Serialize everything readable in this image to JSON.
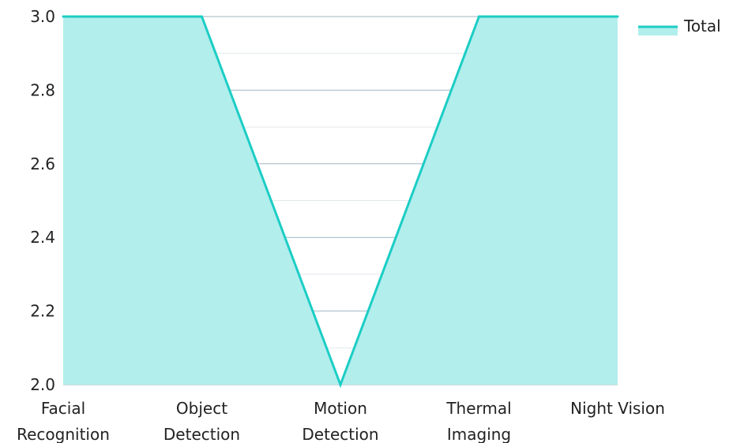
{
  "chart_data": {
    "type": "area",
    "categories": [
      [
        "Facial",
        "Recognition"
      ],
      [
        "Object",
        "Detection"
      ],
      [
        "Motion",
        "Detection"
      ],
      [
        "Thermal",
        "Imaging"
      ],
      [
        "Night Vision"
      ]
    ],
    "series": [
      {
        "name": "Total",
        "values": [
          3,
          3,
          2,
          3,
          3
        ]
      }
    ],
    "ylim": [
      2.0,
      3.0
    ],
    "yticks": [
      "2.0",
      "2.2",
      "2.4",
      "2.6",
      "2.8",
      "3.0"
    ],
    "grid": true,
    "legend_position": "top-right",
    "colors": {
      "line": "#1ccdc5",
      "fill": "#b2eeec",
      "grid_major": "#9fb6c2",
      "grid_minor": "#e2e8ec"
    }
  }
}
